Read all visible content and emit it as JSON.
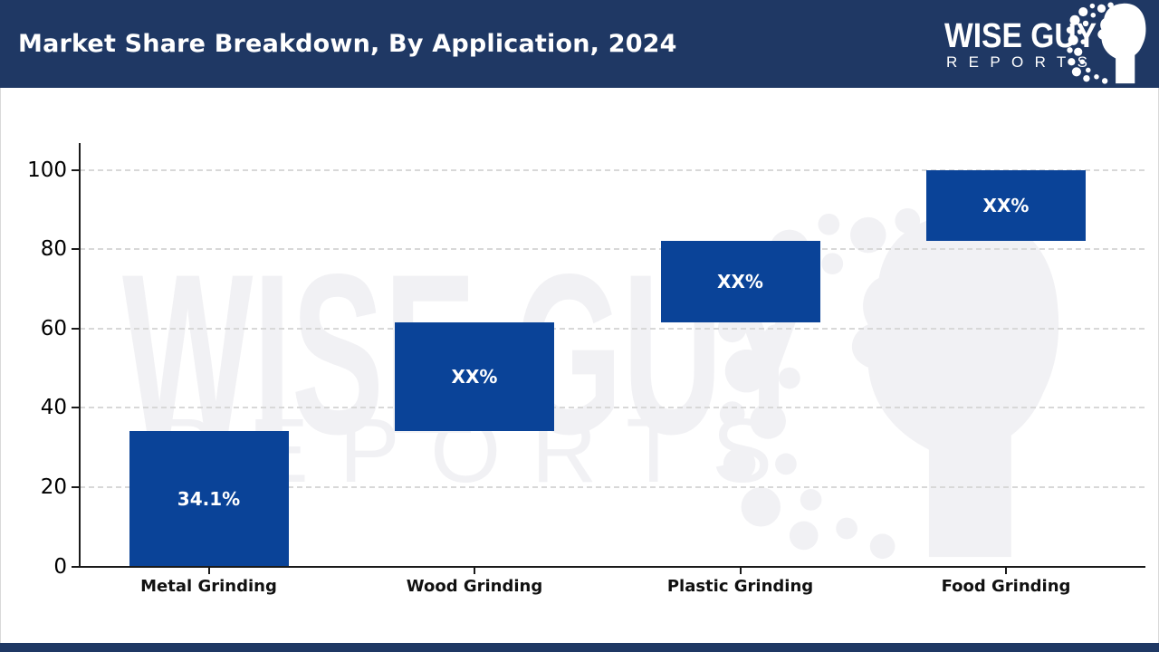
{
  "header": {
    "title": "Market Share Breakdown, By Application, 2024",
    "bg_color": "#1f3864",
    "logo": {
      "line1": "WISE GUY",
      "line2": "REPORTS"
    }
  },
  "watermark": {
    "line1": "WISE GUY",
    "line2": "REPORTS",
    "color": "#f1f1f4"
  },
  "footer": {
    "bg_color": "#1f3864"
  },
  "chart_data": {
    "type": "bar",
    "subtype": "waterfall",
    "title": "Market Share Breakdown, By Application, 2024",
    "categories": [
      "Metal Grinding",
      "Wood Grinding",
      "Plastic Grinding",
      "Food Grinding"
    ],
    "segments": [
      {
        "category": "Metal Grinding",
        "from": 0,
        "to": 34.1,
        "label": "34.1%"
      },
      {
        "category": "Wood Grinding",
        "from": 34.1,
        "to": 61.5,
        "label": "XX%"
      },
      {
        "category": "Plastic Grinding",
        "from": 61.5,
        "to": 82.0,
        "label": "XX%"
      },
      {
        "category": "Food Grinding",
        "from": 82.0,
        "to": 100.0,
        "label": "XX%"
      }
    ],
    "yticks": [
      0,
      20,
      40,
      60,
      80,
      100
    ],
    "ylim": [
      0,
      107
    ],
    "xlabel": "",
    "ylabel": "",
    "grid": "horizontal-dashed",
    "legend": "none",
    "bar_color": "#0a4398",
    "bar_label_color": "#ffffff",
    "axis_color": "#1a1a1a",
    "grid_color": "#d8d8d8"
  }
}
